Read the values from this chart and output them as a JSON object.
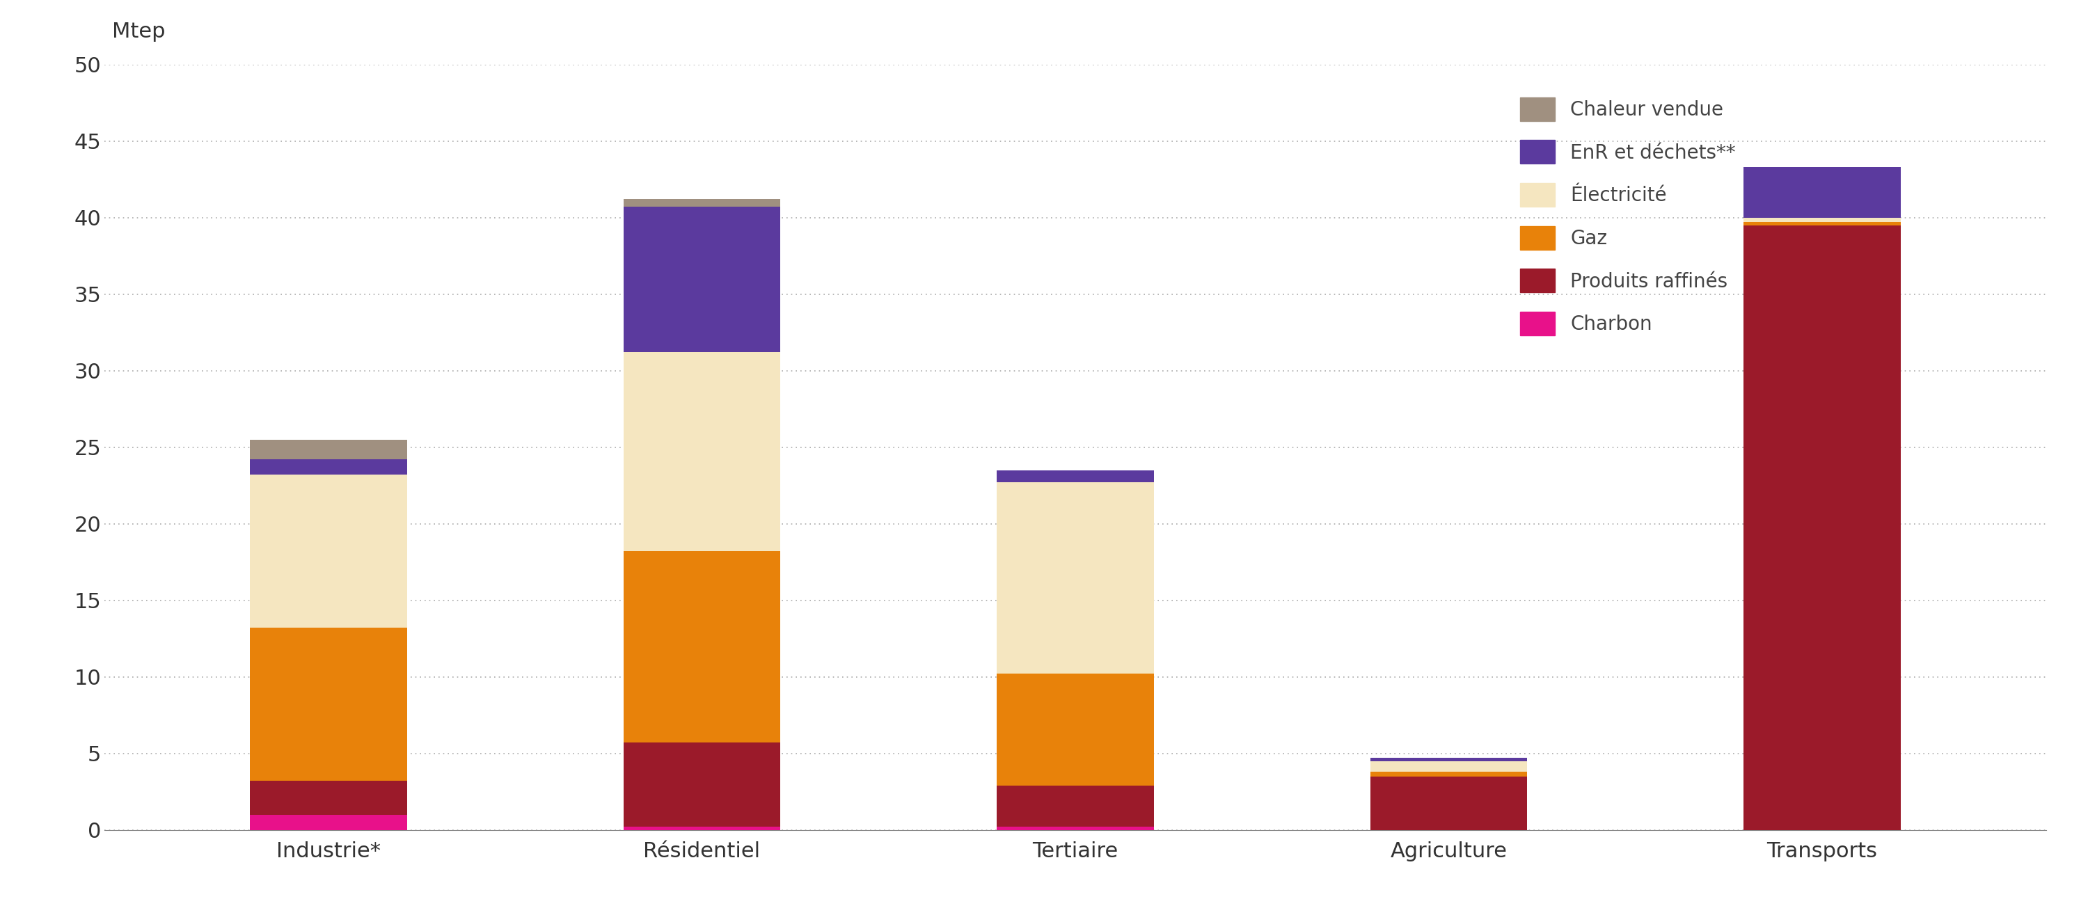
{
  "categories": [
    "Industrie*",
    "Résidentiel",
    "Tertiaire",
    "Agriculture",
    "Transports"
  ],
  "series": [
    {
      "label": "Charbon",
      "color": "#e8118a",
      "values": [
        1.0,
        0.2,
        0.2,
        0.0,
        0.0
      ]
    },
    {
      "label": "Produits raffinés",
      "color": "#9b1a2a",
      "values": [
        2.2,
        5.5,
        2.7,
        3.5,
        39.5
      ]
    },
    {
      "label": "Gaz",
      "color": "#e8820a",
      "values": [
        10.0,
        12.5,
        7.3,
        0.3,
        0.2
      ]
    },
    {
      "label": "Électricité",
      "color": "#f5e6c0",
      "values": [
        10.0,
        13.0,
        12.5,
        0.7,
        0.3
      ]
    },
    {
      "label": "EnR et déchets**",
      "color": "#5b3a9e",
      "values": [
        1.0,
        9.5,
        0.8,
        0.2,
        3.3
      ]
    },
    {
      "label": "Chaleur vendue",
      "color": "#a09080",
      "values": [
        1.3,
        0.5,
        0.0,
        0.0,
        0.0
      ]
    }
  ],
  "ylabel": "Mtep",
  "ylim": [
    0,
    50
  ],
  "yticks": [
    0,
    5,
    10,
    15,
    20,
    25,
    30,
    35,
    40,
    45,
    50
  ],
  "background_color": "#ffffff",
  "grid_color": "#aaaaaa",
  "bar_width": 0.42,
  "tick_label_fontsize": 22,
  "ylabel_fontsize": 22,
  "legend_fontsize": 20
}
